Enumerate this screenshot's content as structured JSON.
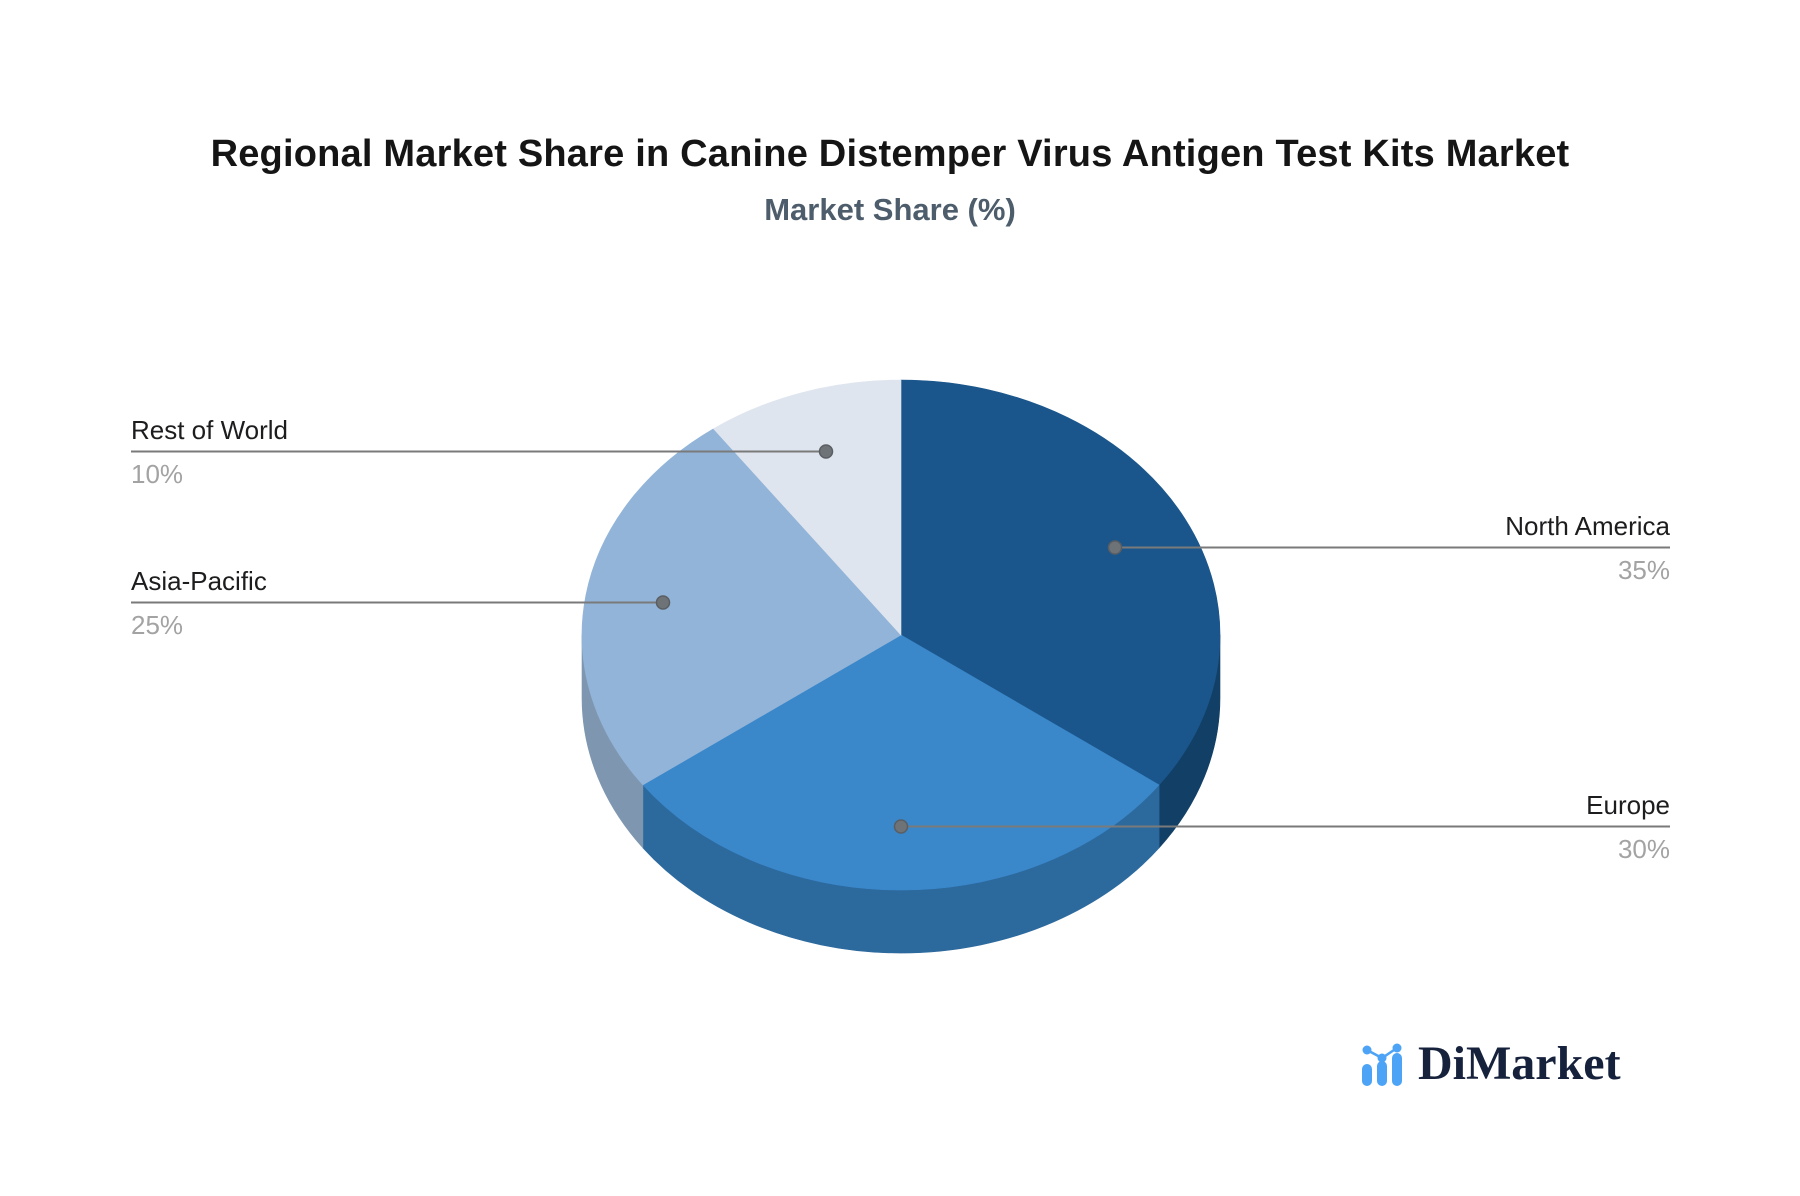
{
  "header": {
    "title": "Regional Market Share in Canine Distemper Virus Antigen Test Kits Market",
    "subtitle": "Market Share (%)"
  },
  "chart_data": {
    "type": "pie",
    "title": "Regional Market Share in Canine Distemper Virus Antigen Test Kits Market",
    "subtitle": "Market Share (%)",
    "effect_3d": true,
    "start_angle_deg": 0,
    "direction": "clockwise",
    "categories": [
      "North America",
      "Europe",
      "Asia-Pacific",
      "Rest of World"
    ],
    "values": [
      35,
      30,
      25,
      10
    ],
    "unit": "%",
    "colors": [
      "#1a568b",
      "#3a87ca",
      "#92b4d8",
      "#dfe5ee"
    ],
    "side_colors": [
      "#123f66",
      "#2c699d",
      "#7e96af",
      "#b9c0cc"
    ],
    "labels": [
      {
        "name": "North America",
        "value": "35%"
      },
      {
        "name": "Europe",
        "value": "30%"
      },
      {
        "name": "Asia-Pacific",
        "value": "25%"
      },
      {
        "name": "Rest of World",
        "value": "10%"
      }
    ],
    "legend_position": "callout-labels",
    "callout_line_color": "#7a7a7a",
    "label_name_color": "#1d1d1f",
    "label_value_color": "#a3a3a3"
  },
  "branding": {
    "logo_text": "DiMarket",
    "logo_icon": "bar-chart-icon",
    "logo_icon_color": "#4da3f5",
    "logo_text_color": "#16213c"
  }
}
